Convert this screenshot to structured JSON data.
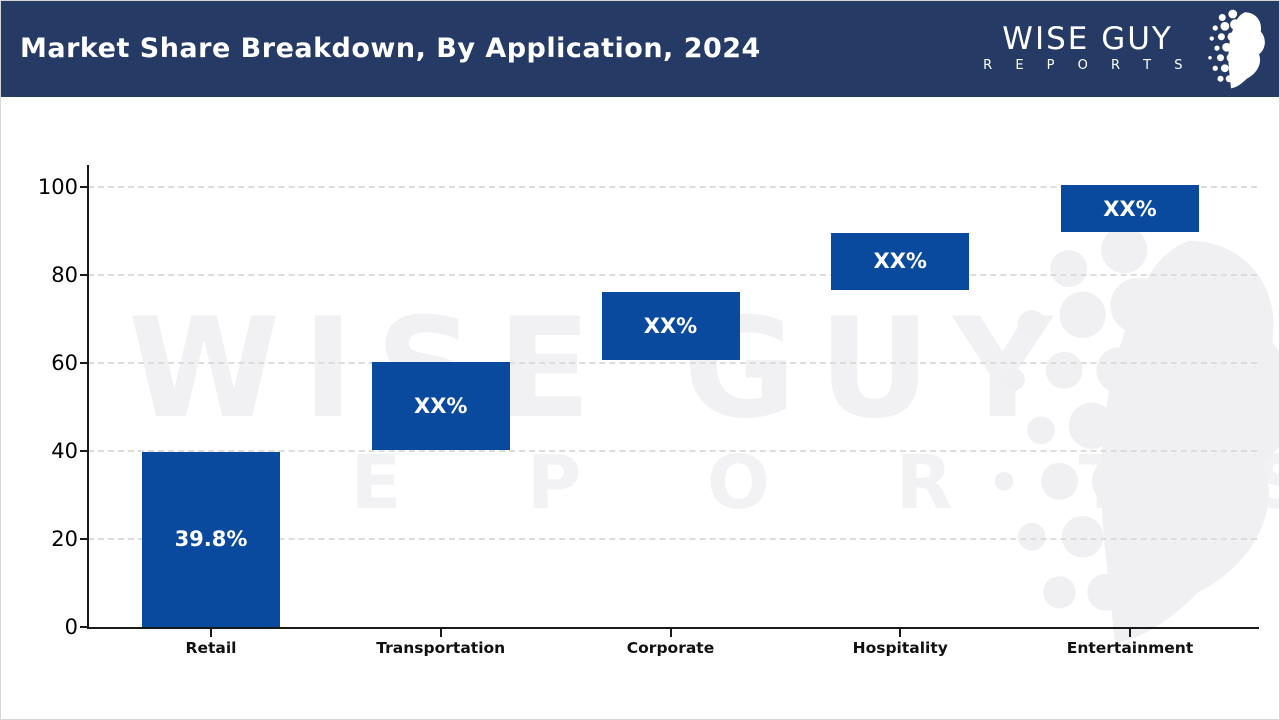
{
  "header": {
    "title": "Market Share Breakdown, By Application, 2024",
    "background_color": "#253a64",
    "logo": {
      "line1": "WISE GUY",
      "line2": "R E P O R T S"
    }
  },
  "watermark": {
    "line1": "WISE GUY",
    "line2": "R E P O R T S"
  },
  "chart_data": {
    "type": "bar",
    "subtype": "waterfall",
    "title": "Market Share Breakdown, By Application, 2024",
    "xlabel": "",
    "ylabel": "",
    "categories": [
      "Retail",
      "Transportation",
      "Corporate",
      "Hospitality",
      "Entertainment"
    ],
    "segments": [
      {
        "category": "Retail",
        "start": 0,
        "end": 39.8,
        "label": "39.8%"
      },
      {
        "category": "Transportation",
        "start": 40.3,
        "end": 60.2,
        "label": "XX%"
      },
      {
        "category": "Corporate",
        "start": 60.6,
        "end": 76.1,
        "label": "XX%"
      },
      {
        "category": "Hospitality",
        "start": 76.6,
        "end": 89.6,
        "label": "XX%"
      },
      {
        "category": "Entertainment",
        "start": 89.8,
        "end": 100.4,
        "label": "XX%"
      }
    ],
    "ylim": [
      0,
      100
    ],
    "yticks": [
      0,
      20,
      40,
      60,
      80,
      100
    ],
    "grid": "horizontal dashed, light gray",
    "legend": "none",
    "bar_color": "#0a4a9e",
    "bar_label_color": "#ffffff",
    "axis_color": "#1a1a1a"
  }
}
